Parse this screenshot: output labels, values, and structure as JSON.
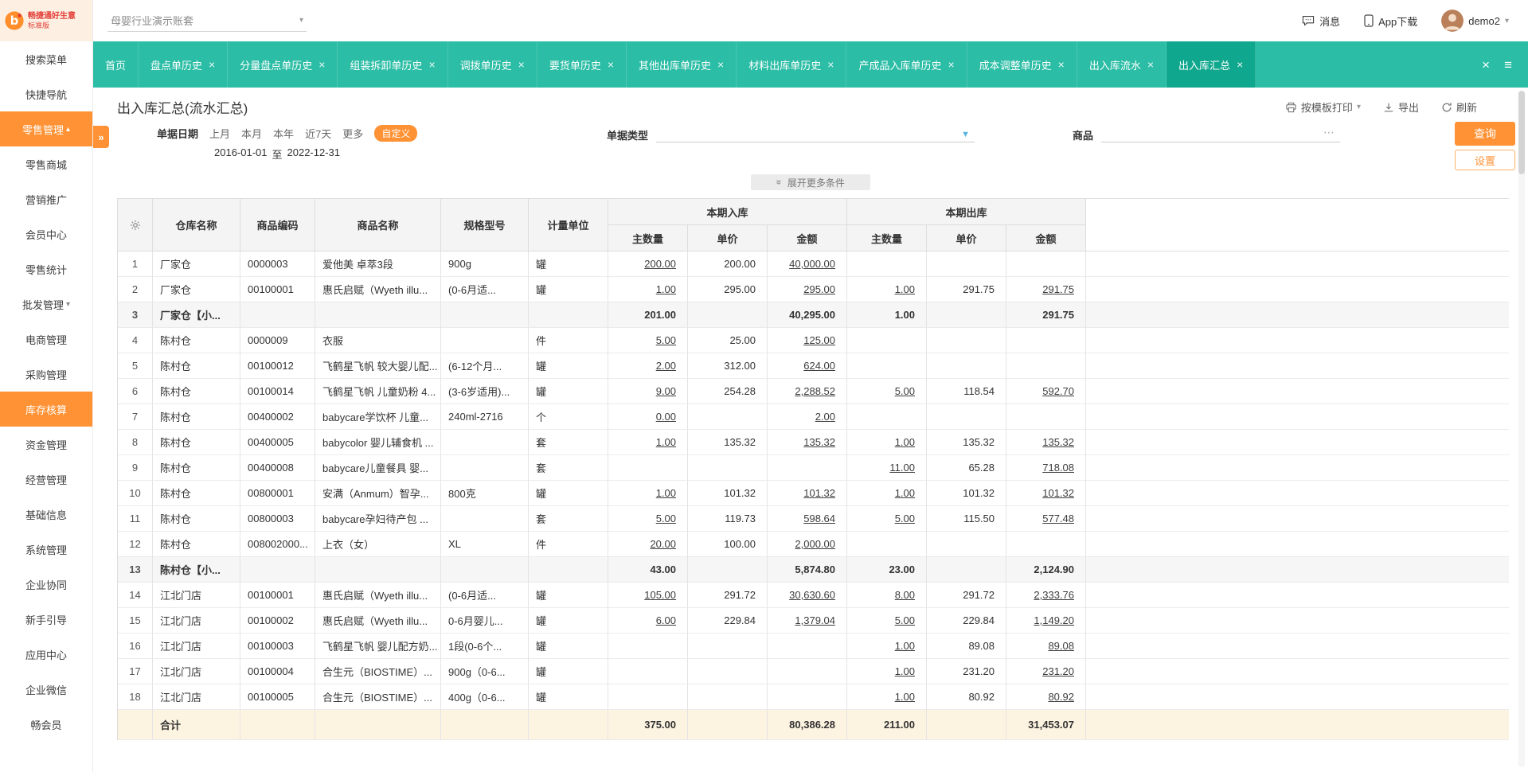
{
  "brand": {
    "name": "畅捷通好生意",
    "edition": "标准版"
  },
  "topbar": {
    "account": "母婴行业演示账套",
    "messages": "消息",
    "app_download": "App下载",
    "username": "demo2"
  },
  "sidebar": [
    {
      "label": "搜索菜单"
    },
    {
      "label": "快捷导航"
    },
    {
      "label": "零售管理",
      "active": true,
      "caret": "up"
    },
    {
      "label": "零售商城",
      "sub": true
    },
    {
      "label": "营销推广",
      "sub": true
    },
    {
      "label": "会员中心",
      "sub": true
    },
    {
      "label": "零售统计",
      "sub": true
    },
    {
      "label": "批发管理",
      "caret": "down"
    },
    {
      "label": "电商管理"
    },
    {
      "label": "采购管理"
    },
    {
      "label": "库存核算",
      "active": true
    },
    {
      "label": "资金管理"
    },
    {
      "label": "经营管理"
    },
    {
      "label": "基础信息"
    },
    {
      "label": "系统管理"
    },
    {
      "label": "企业协同"
    },
    {
      "label": "新手引导"
    },
    {
      "label": "应用中心"
    },
    {
      "label": "企业微信"
    },
    {
      "label": "畅会员"
    }
  ],
  "tabs": [
    {
      "label": "首页",
      "closable": false
    },
    {
      "label": "盘点单历史",
      "closable": true
    },
    {
      "label": "分量盘点单历史",
      "closable": true
    },
    {
      "label": "组装拆卸单历史",
      "closable": true
    },
    {
      "label": "调拨单历史",
      "closable": true
    },
    {
      "label": "要货单历史",
      "closable": true
    },
    {
      "label": "其他出库单历史",
      "closable": true
    },
    {
      "label": "材料出库单历史",
      "closable": true
    },
    {
      "label": "产成品入库单历史",
      "closable": true
    },
    {
      "label": "成本调整单历史",
      "closable": true
    },
    {
      "label": "出入库流水",
      "closable": true
    },
    {
      "label": "出入库汇总",
      "closable": true,
      "active": true
    }
  ],
  "page": {
    "title": "出入库汇总(流水汇总)",
    "print": "按模板打印",
    "export": "导出",
    "refresh": "刷新"
  },
  "filters": {
    "date_label": "单据日期",
    "date_quick": [
      "上月",
      "本月",
      "本年",
      "近7天",
      "更多"
    ],
    "custom": "自定义",
    "date_from": "2016-01-01",
    "date_sep": "至",
    "date_to": "2022-12-31",
    "doc_type_label": "单据类型",
    "product_label": "商品",
    "query": "查询",
    "settings": "设置",
    "expand_more": "展开更多条件"
  },
  "grid": {
    "columns": {
      "warehouse": "仓库名称",
      "code": "商品编码",
      "name": "商品名称",
      "spec": "规格型号",
      "unit": "计量单位",
      "inbound": "本期入库",
      "outbound": "本期出库",
      "qty": "主数量",
      "price": "单价",
      "amount": "金额"
    },
    "rows": [
      {
        "n": "1",
        "warehouse": "厂家仓",
        "code": "0000003",
        "name": "爱他美 卓萃3段",
        "spec": "900g",
        "unit": "罐",
        "in_qty": "200.00",
        "in_price": "200.00",
        "in_amt": "40,000.00",
        "out_qty": "",
        "out_price": "",
        "out_amt": ""
      },
      {
        "n": "2",
        "warehouse": "厂家仓",
        "code": "00100001",
        "name": "惠氏启赋（Wyeth illu...",
        "spec": "(0-6月适...",
        "unit": "罐",
        "in_qty": "1.00",
        "in_price": "295.00",
        "in_amt": "295.00",
        "out_qty": "1.00",
        "out_price": "291.75",
        "out_amt": "291.75"
      },
      {
        "n": "3",
        "warehouse": "厂家仓【小...",
        "code": "",
        "name": "",
        "spec": "",
        "unit": "",
        "in_qty": "201.00",
        "in_price": "",
        "in_amt": "40,295.00",
        "out_qty": "1.00",
        "out_price": "",
        "out_amt": "291.75",
        "subtotal": true
      },
      {
        "n": "4",
        "warehouse": "陈村仓",
        "code": "0000009",
        "name": "衣服",
        "spec": "",
        "unit": "件",
        "in_qty": "5.00",
        "in_price": "25.00",
        "in_amt": "125.00",
        "out_qty": "",
        "out_price": "",
        "out_amt": ""
      },
      {
        "n": "5",
        "warehouse": "陈村仓",
        "code": "00100012",
        "name": "飞鹤星飞帆 较大婴儿配...",
        "spec": "(6-12个月...",
        "unit": "罐",
        "in_qty": "2.00",
        "in_price": "312.00",
        "in_amt": "624.00",
        "out_qty": "",
        "out_price": "",
        "out_amt": ""
      },
      {
        "n": "6",
        "warehouse": "陈村仓",
        "code": "00100014",
        "name": "飞鹤星飞帆 儿童奶粉 4...",
        "spec": "(3-6岁适用)...",
        "unit": "罐",
        "in_qty": "9.00",
        "in_price": "254.28",
        "in_amt": "2,288.52",
        "out_qty": "5.00",
        "out_price": "118.54",
        "out_amt": "592.70"
      },
      {
        "n": "7",
        "warehouse": "陈村仓",
        "code": "00400002",
        "name": "babycare学饮杯 儿童...",
        "spec": "240ml-2716",
        "unit": "个",
        "in_qty": "0.00",
        "in_price": "",
        "in_amt": "2.00",
        "out_qty": "",
        "out_price": "",
        "out_amt": ""
      },
      {
        "n": "8",
        "warehouse": "陈村仓",
        "code": "00400005",
        "name": "babycolor 婴儿辅食机 ...",
        "spec": "",
        "unit": "套",
        "in_qty": "1.00",
        "in_price": "135.32",
        "in_amt": "135.32",
        "out_qty": "1.00",
        "out_price": "135.32",
        "out_amt": "135.32"
      },
      {
        "n": "9",
        "warehouse": "陈村仓",
        "code": "00400008",
        "name": "babycare儿童餐具 婴...",
        "spec": "",
        "unit": "套",
        "in_qty": "",
        "in_price": "",
        "in_amt": "",
        "out_qty": "11.00",
        "out_price": "65.28",
        "out_amt": "718.08"
      },
      {
        "n": "10",
        "warehouse": "陈村仓",
        "code": "00800001",
        "name": "安满（Anmum）智孕...",
        "spec": "800克",
        "unit": "罐",
        "in_qty": "1.00",
        "in_price": "101.32",
        "in_amt": "101.32",
        "out_qty": "1.00",
        "out_price": "101.32",
        "out_amt": "101.32"
      },
      {
        "n": "11",
        "warehouse": "陈村仓",
        "code": "00800003",
        "name": "babycare孕妇待产包 ...",
        "spec": "",
        "unit": "套",
        "in_qty": "5.00",
        "in_price": "119.73",
        "in_amt": "598.64",
        "out_qty": "5.00",
        "out_price": "115.50",
        "out_amt": "577.48"
      },
      {
        "n": "12",
        "warehouse": "陈村仓",
        "code": "008002000...",
        "name": "上衣（女）",
        "spec": "XL",
        "unit": "件",
        "in_qty": "20.00",
        "in_price": "100.00",
        "in_amt": "2,000.00",
        "out_qty": "",
        "out_price": "",
        "out_amt": ""
      },
      {
        "n": "13",
        "warehouse": "陈村仓【小...",
        "code": "",
        "name": "",
        "spec": "",
        "unit": "",
        "in_qty": "43.00",
        "in_price": "",
        "in_amt": "5,874.80",
        "out_qty": "23.00",
        "out_price": "",
        "out_amt": "2,124.90",
        "subtotal": true
      },
      {
        "n": "14",
        "warehouse": "江北门店",
        "code": "00100001",
        "name": "惠氏启赋（Wyeth illu...",
        "spec": "(0-6月适...",
        "unit": "罐",
        "in_qty": "105.00",
        "in_price": "291.72",
        "in_amt": "30,630.60",
        "out_qty": "8.00",
        "out_price": "291.72",
        "out_amt": "2,333.76"
      },
      {
        "n": "15",
        "warehouse": "江北门店",
        "code": "00100002",
        "name": "惠氏启赋（Wyeth illu...",
        "spec": "0-6月婴儿...",
        "unit": "罐",
        "in_qty": "6.00",
        "in_price": "229.84",
        "in_amt": "1,379.04",
        "out_qty": "5.00",
        "out_price": "229.84",
        "out_amt": "1,149.20"
      },
      {
        "n": "16",
        "warehouse": "江北门店",
        "code": "00100003",
        "name": "飞鹤星飞帆 婴儿配方奶...",
        "spec": "1段(0-6个...",
        "unit": "罐",
        "in_qty": "",
        "in_price": "",
        "in_amt": "",
        "out_qty": "1.00",
        "out_price": "89.08",
        "out_amt": "89.08"
      },
      {
        "n": "17",
        "warehouse": "江北门店",
        "code": "00100004",
        "name": "合生元（BIOSTIME）...",
        "spec": "900g（0-6...",
        "unit": "罐",
        "in_qty": "",
        "in_price": "",
        "in_amt": "",
        "out_qty": "1.00",
        "out_price": "231.20",
        "out_amt": "231.20"
      },
      {
        "n": "18",
        "warehouse": "江北门店",
        "code": "00100005",
        "name": "合生元（BIOSTIME）...",
        "spec": "400g（0-6...",
        "unit": "罐",
        "in_qty": "",
        "in_price": "",
        "in_amt": "",
        "out_qty": "1.00",
        "out_price": "80.92",
        "out_amt": "80.92"
      }
    ],
    "total": {
      "label": "合计",
      "in_qty": "375.00",
      "in_price": "",
      "in_amt": "80,386.28",
      "out_qty": "211.00",
      "out_price": "",
      "out_amt": "31,453.07"
    }
  },
  "colors": {
    "teal": "#2bbda5",
    "teal_active": "#0fa78d",
    "orange": "#ff9234",
    "total_row_bg": "#fdf3e1"
  }
}
